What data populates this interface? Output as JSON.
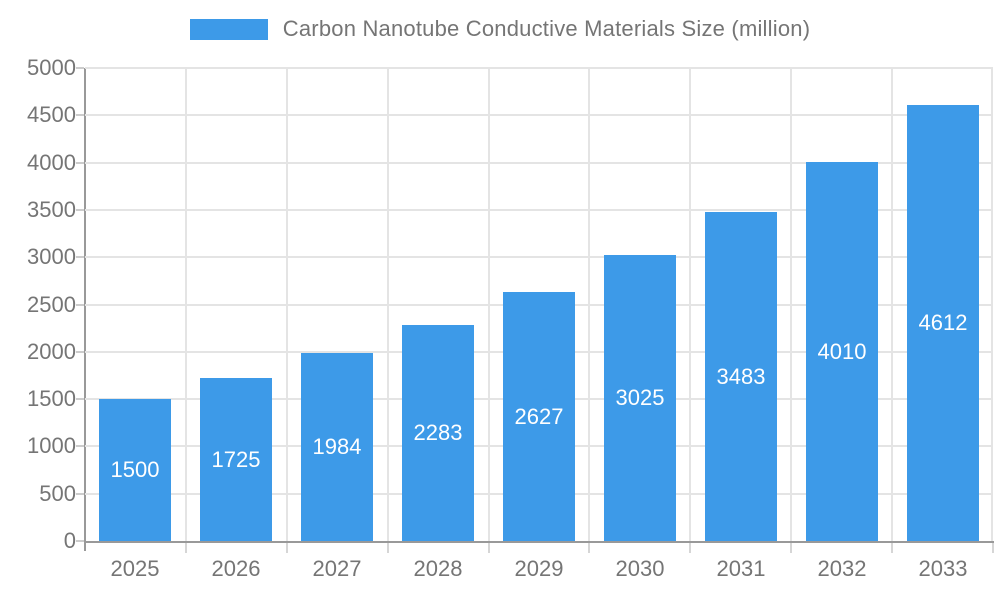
{
  "legend": {
    "label": "Carbon Nanotube Conductive Materials Size (million)"
  },
  "chart_data": {
    "type": "bar",
    "title": "Carbon Nanotube Conductive Materials Size (million)",
    "categories": [
      "2025",
      "2026",
      "2027",
      "2028",
      "2029",
      "2030",
      "2031",
      "2032",
      "2033"
    ],
    "values": [
      1500,
      1725,
      1984,
      2283,
      2627,
      3025,
      3483,
      4010,
      4612
    ],
    "xlabel": "",
    "ylabel": "",
    "ylim": [
      0,
      5000
    ],
    "ytick_step": 500,
    "grid": true,
    "legend_position": "top",
    "value_labels": "inside-center",
    "colors": {
      "bar": "#3d9ae8",
      "axis": "#999999",
      "gridline": "#e4e4e4",
      "tick": "#cccccc",
      "axis_text": "#757575",
      "value_text": "#ffffff",
      "background": "#ffffff"
    }
  }
}
